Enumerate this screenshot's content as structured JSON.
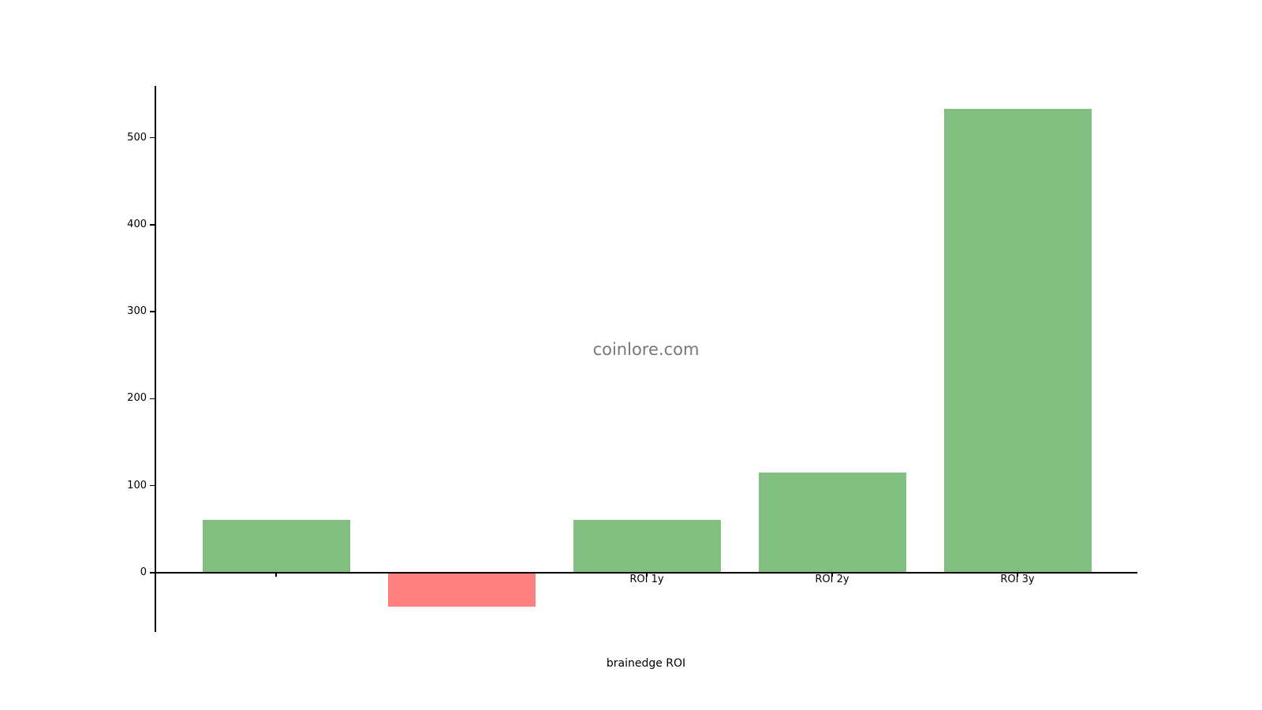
{
  "chart_data": {
    "type": "bar",
    "title": "",
    "xlabel": "brainedge ROI",
    "ylabel": "",
    "watermark": "coinlore.com",
    "categories": [
      "",
      "",
      "ROI 1y",
      "ROI 2y",
      "ROI 3y"
    ],
    "values": [
      61,
      -38,
      61,
      115,
      533
    ],
    "bar_colors": [
      "#80BF80",
      "#FF8080",
      "#80BF80",
      "#80BF80",
      "#80BF80"
    ],
    "positive_color": "#80BF80",
    "negative_color": "#FF8080",
    "axis_color": "#000000",
    "watermark_color": "#777777",
    "y_ticks": [
      0,
      100,
      200,
      300,
      400,
      500
    ],
    "ylim": [
      -67,
      561
    ],
    "grid": false,
    "legend": null
  }
}
